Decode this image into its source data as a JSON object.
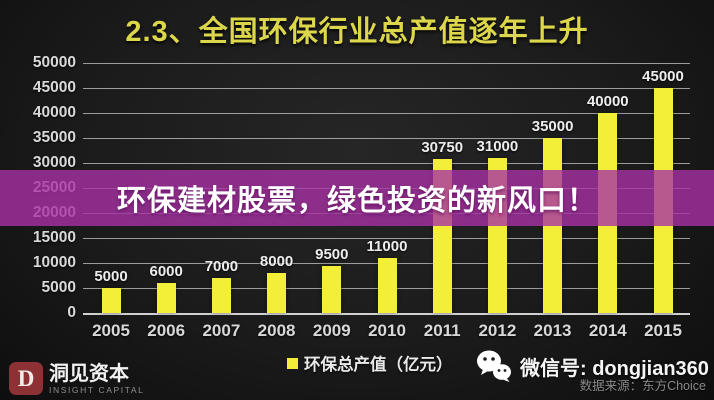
{
  "title": "2.3、全国环保行业总产值逐年上升",
  "banner": {
    "text": "环保建材股票，绿色投资的新风口！",
    "bg_color": "#a832a4"
  },
  "chart_data": {
    "type": "bar",
    "categories": [
      "2005",
      "2006",
      "2007",
      "2008",
      "2009",
      "2010",
      "2011",
      "2012",
      "2013",
      "2014",
      "2015"
    ],
    "values": [
      5000,
      6000,
      7000,
      8000,
      9500,
      11000,
      30750,
      31000,
      35000,
      40000,
      45000
    ],
    "title": "2.3、全国环保行业总产值逐年上升",
    "xlabel": "",
    "ylabel": "",
    "ylim": [
      0,
      50000
    ],
    "ytick_step": 5000,
    "grid": true,
    "legend": "环保总产值（亿元）",
    "legend_position": "bottom",
    "bar_color": "#f3ee38"
  },
  "legend": {
    "label": "环保总产值（亿元）",
    "swatch_color": "#f3ee38"
  },
  "footer": {
    "logo_letter": "D",
    "logo_name": "洞见资本",
    "logo_sub": "INSIGHT CAPITAL",
    "wechat_label": "微信号: dongjian360",
    "source": "数据来源：东方Choice"
  },
  "colors": {
    "background": "#1b1b1b",
    "title_text": "#dcd64b",
    "bar": "#f3ee38",
    "banner_overlay": "rgba(168,50,164,0.8)",
    "grid": "#c8c8c8",
    "axis_text": "#d9d9d9",
    "value_text": "#ededed",
    "logo_bg": "#8d3134"
  }
}
